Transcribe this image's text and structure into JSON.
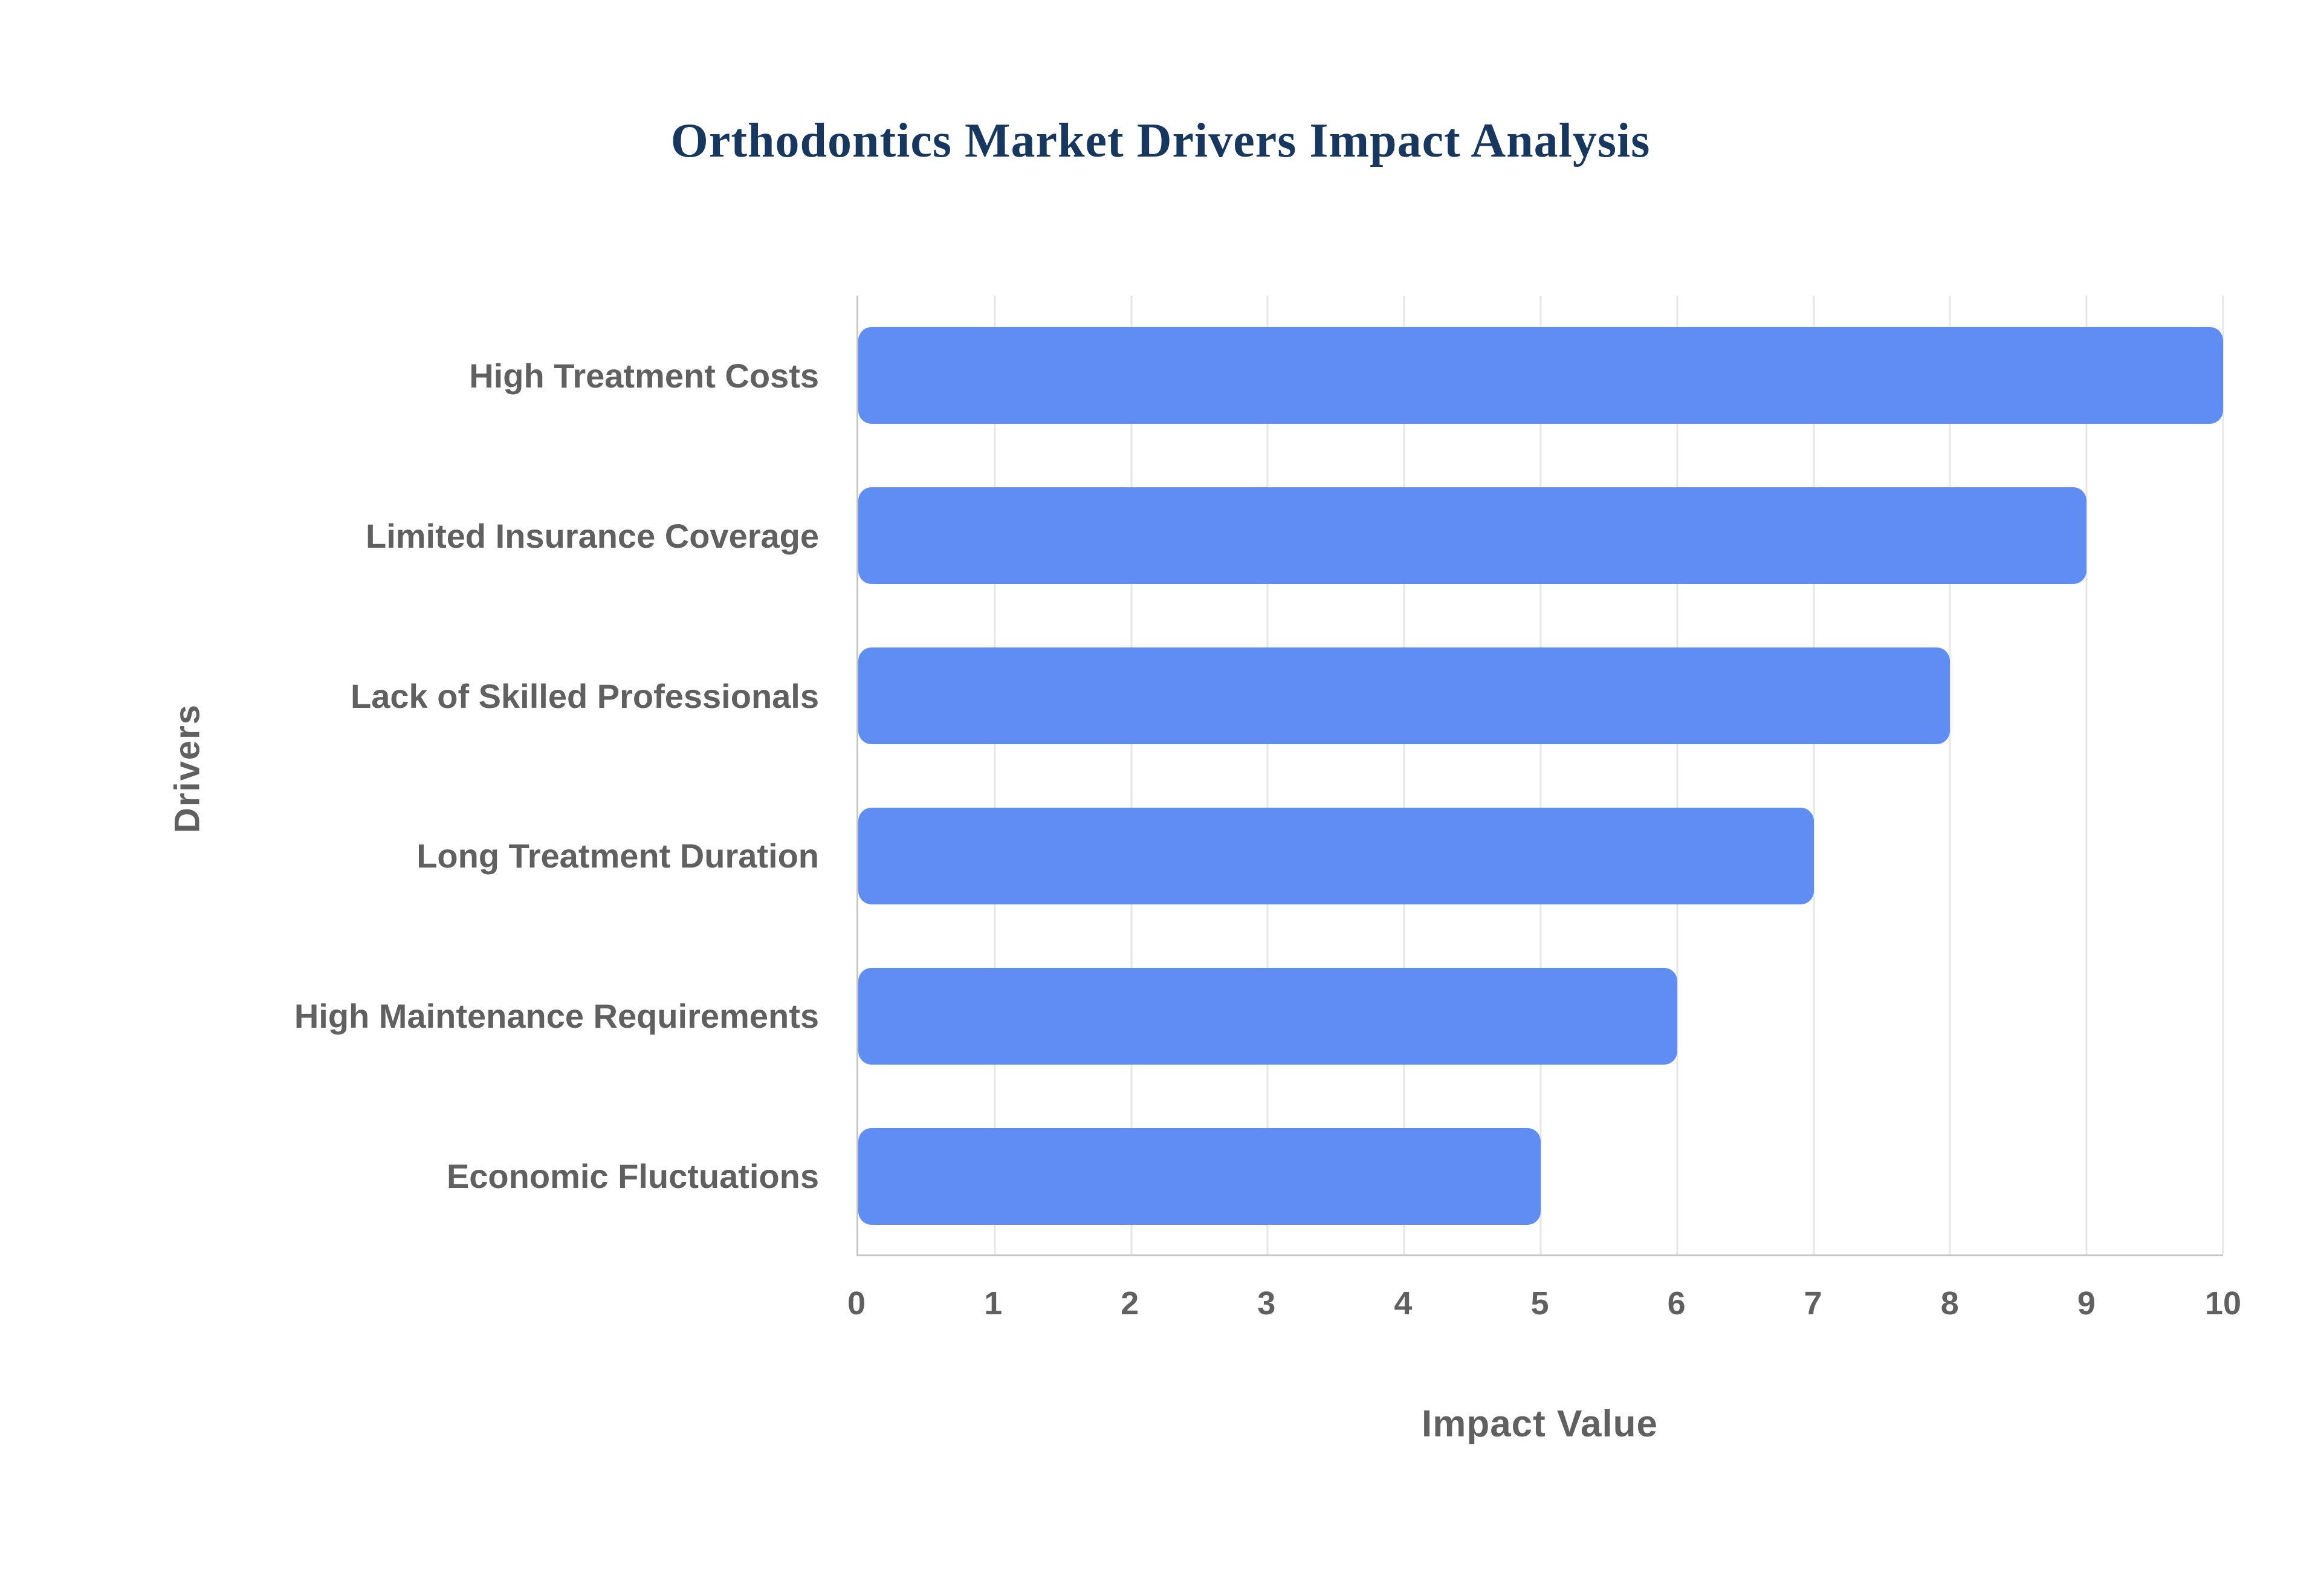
{
  "chart_data": {
    "type": "bar",
    "orientation": "horizontal",
    "title": "Orthodontics Market Drivers Impact Analysis",
    "categories": [
      "High Treatment Costs",
      "Limited Insurance Coverage",
      "Lack of Skilled Professionals",
      "Long Treatment Duration",
      "High Maintenance Requirements",
      "Economic Fluctuations"
    ],
    "values": [
      10,
      9,
      8,
      7,
      6,
      5
    ],
    "xlabel": "Impact Value",
    "ylabel": "Drivers",
    "xlim": [
      0,
      10
    ],
    "xticks": [
      0,
      1,
      2,
      3,
      4,
      5,
      6,
      7,
      8,
      9,
      10
    ],
    "grid": true,
    "legend": "none",
    "colors": {
      "bar": "#5f8df2",
      "title": "#17375e",
      "labels": "#606060",
      "gridlines": "#e6e6e6",
      "axis_lines": "#c7c7c7",
      "background": "#ffffff"
    }
  }
}
